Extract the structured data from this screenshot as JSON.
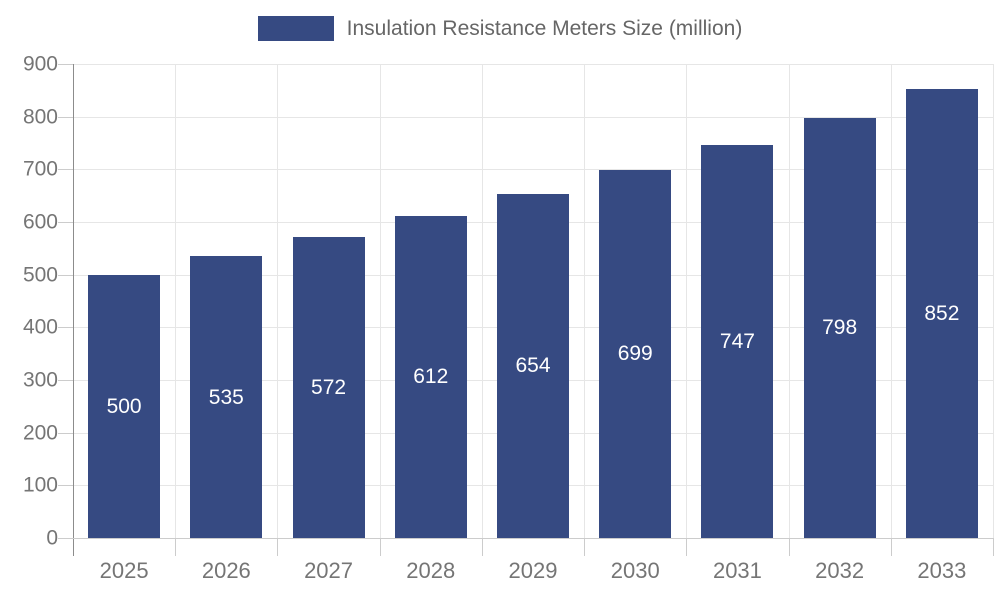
{
  "chart_data": {
    "type": "bar",
    "legend_label": "Insulation Resistance Meters Size (million)",
    "categories": [
      "2025",
      "2026",
      "2027",
      "2028",
      "2029",
      "2030",
      "2031",
      "2032",
      "2033"
    ],
    "values": [
      500,
      535,
      572,
      612,
      654,
      699,
      747,
      798,
      852
    ],
    "ylim": [
      0,
      900
    ],
    "ytick_step": 100,
    "ytick_labels": [
      "0",
      "100",
      "200",
      "300",
      "400",
      "500",
      "600",
      "700",
      "800",
      "900"
    ],
    "grid": true,
    "legend_position": "top",
    "value_labels_inside_bars": true,
    "colors": {
      "bar": "#364a82",
      "value_label": "#ffffff",
      "axis_text": "#757575",
      "legend_text": "#666666",
      "gridline": "#e6e6e6",
      "axis_line": "#cccccc",
      "y_axis_line": "#8c8c8c"
    }
  }
}
